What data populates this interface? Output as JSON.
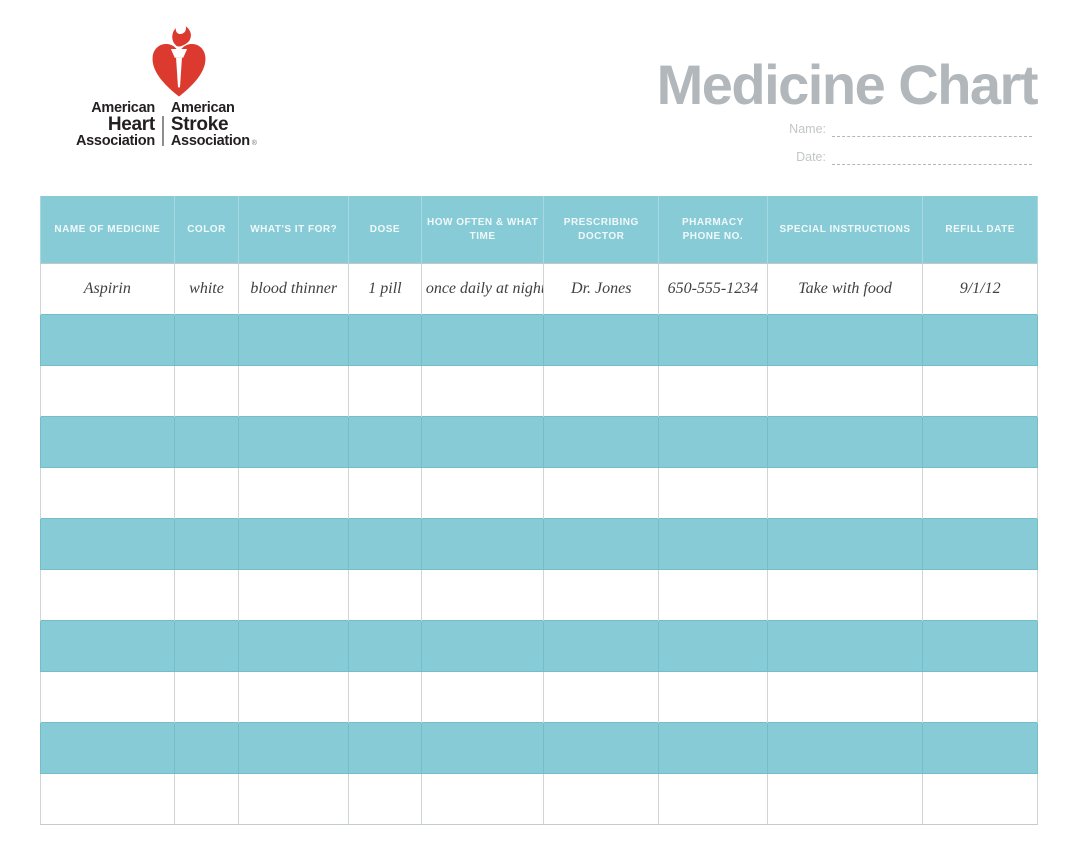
{
  "logo": {
    "icon": "heart-torch-icon",
    "heart_lines": [
      "American",
      "Heart",
      "Association"
    ],
    "stroke_lines": [
      "American",
      "Stroke",
      "Association"
    ],
    "registered_mark": "®"
  },
  "masthead": {
    "title": "Medicine Chart",
    "name_label": "Name:",
    "name_value": "",
    "date_label": "Date:",
    "date_value": ""
  },
  "table": {
    "columns": [
      {
        "key": "name-of-medicine",
        "label": "NAME OF MEDICINE",
        "width": "13.4%"
      },
      {
        "key": "color",
        "label": "COLOR",
        "width": "6.5%"
      },
      {
        "key": "whats-it-for",
        "label": "WHAT'S IT FOR?",
        "width": "11.0%"
      },
      {
        "key": "dose",
        "label": "DOSE",
        "width": "7.3%"
      },
      {
        "key": "how-often-what-time",
        "label": "HOW OFTEN & WHAT TIME",
        "width": "12.3%"
      },
      {
        "key": "prescribing-doctor",
        "label": "PRESCRIBING DOCTOR",
        "width": "11.5%"
      },
      {
        "key": "pharmacy-phone-no",
        "label": "PHARMACY PHONE NO.",
        "width": "10.9%"
      },
      {
        "key": "special-instructions",
        "label": "SPECIAL INSTRUCTIONS",
        "width": "15.6%"
      },
      {
        "key": "refill-date",
        "label": "REFILL DATE",
        "width": "11.5%"
      }
    ],
    "rows": [
      {
        "cells": [
          "Aspirin",
          "white",
          "blood thinner",
          "1 pill",
          "once daily at night",
          "Dr. Jones",
          "650-555-1234",
          "Take with food",
          "9/1/12"
        ]
      },
      {
        "cells": [
          "",
          "",
          "",
          "",
          "",
          "",
          "",
          "",
          ""
        ]
      },
      {
        "cells": [
          "",
          "",
          "",
          "",
          "",
          "",
          "",
          "",
          ""
        ]
      },
      {
        "cells": [
          "",
          "",
          "",
          "",
          "",
          "",
          "",
          "",
          ""
        ]
      },
      {
        "cells": [
          "",
          "",
          "",
          "",
          "",
          "",
          "",
          "",
          ""
        ]
      },
      {
        "cells": [
          "",
          "",
          "",
          "",
          "",
          "",
          "",
          "",
          ""
        ]
      },
      {
        "cells": [
          "",
          "",
          "",
          "",
          "",
          "",
          "",
          "",
          ""
        ]
      },
      {
        "cells": [
          "",
          "",
          "",
          "",
          "",
          "",
          "",
          "",
          ""
        ]
      },
      {
        "cells": [
          "",
          "",
          "",
          "",
          "",
          "",
          "",
          "",
          ""
        ]
      },
      {
        "cells": [
          "",
          "",
          "",
          "",
          "",
          "",
          "",
          "",
          ""
        ]
      },
      {
        "cells": [
          "",
          "",
          "",
          "",
          "",
          "",
          "",
          "",
          ""
        ]
      }
    ]
  },
  "colors": {
    "teal_fill": "#87cbd6",
    "teal_divider": "#74bdca",
    "header_divider": "#a6d9e1",
    "header_text": "#ffffff",
    "row_border": "#cfd4d5",
    "title_gray": "#b1b7ba",
    "field_label_gray": "#c2c6c8",
    "field_line_gray": "#b3b8ba",
    "logo_text_black": "#231f20",
    "heart_red": "#dc3a2e"
  }
}
